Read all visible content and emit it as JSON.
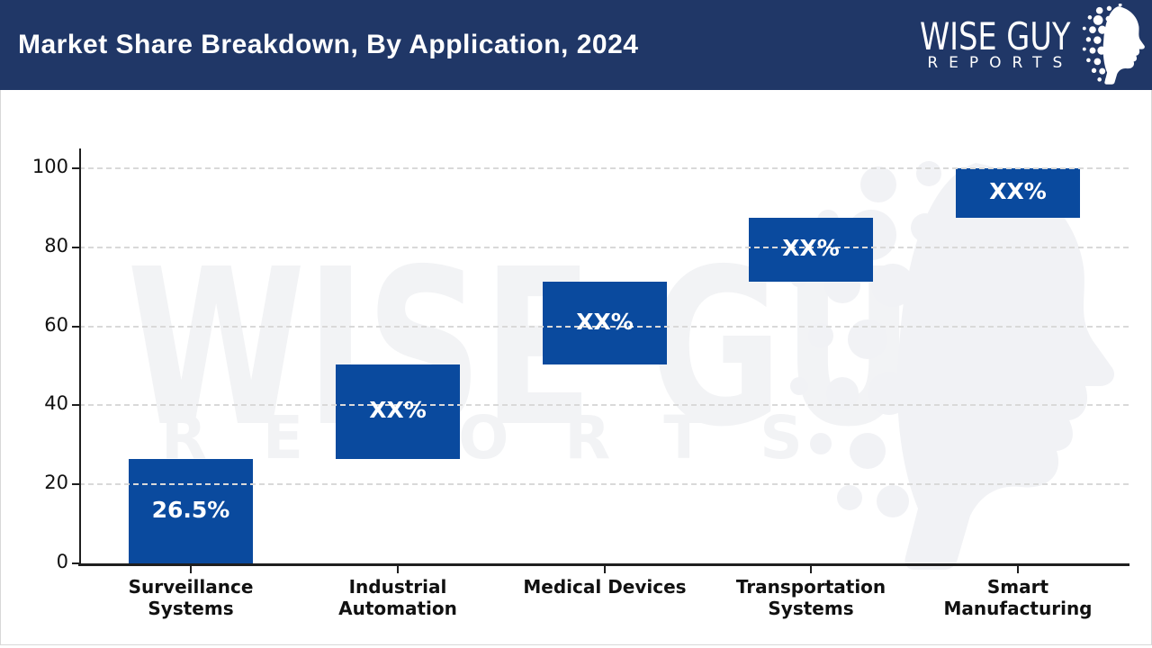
{
  "header": {
    "title": "Market Share Breakdown, By Application, 2024",
    "bg_color": "#203767",
    "logo": {
      "line1": "WISE GUY",
      "line2": "REPORTS"
    }
  },
  "watermark": {
    "line1": "WISE GUY",
    "line2": "REPORTS"
  },
  "chart_data": {
    "type": "bar",
    "subtype": "waterfall",
    "title": "Market Share Breakdown, By Application, 2024",
    "xlabel": "",
    "ylabel": "",
    "ylim": [
      0,
      100
    ],
    "yticks": [
      0,
      20,
      40,
      60,
      80,
      100
    ],
    "grid": true,
    "gridline_color": "#d9d9d9",
    "bar_color": "#0a4a9e",
    "value_label_color": "#ffffff",
    "categories": [
      [
        "Surveillance",
        "Systems"
      ],
      [
        "Industrial",
        "Automation"
      ],
      [
        "Medical Devices"
      ],
      [
        "Transportation",
        "Systems"
      ],
      [
        "Smart",
        "Manufacturing"
      ]
    ],
    "segments": [
      {
        "category": "Surveillance Systems",
        "start": 0,
        "end": 26.5,
        "label": "26.5%"
      },
      {
        "category": "Industrial Automation",
        "start": 26.5,
        "end": 50.3,
        "label": "XX%"
      },
      {
        "category": "Medical Devices",
        "start": 50.3,
        "end": 71.3,
        "label": "XX%"
      },
      {
        "category": "Transportation Systems",
        "start": 71.3,
        "end": 87.5,
        "label": "XX%"
      },
      {
        "category": "Smart Manufacturing",
        "start": 87.5,
        "end": 100,
        "label": "XX%"
      }
    ]
  }
}
